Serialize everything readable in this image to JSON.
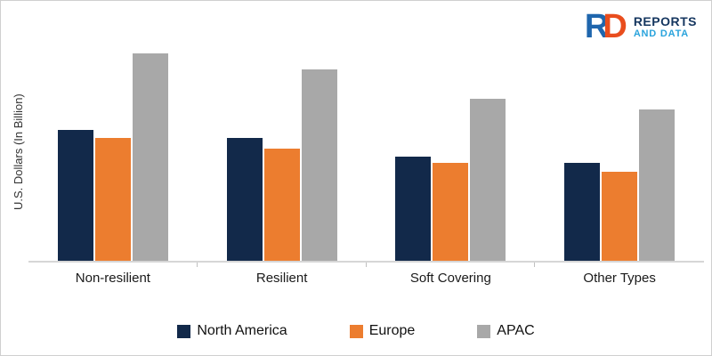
{
  "logo": {
    "letter_r": "R",
    "letter_d": "D",
    "line1": "REPORTS",
    "line2": "AND DATA"
  },
  "chart_data": {
    "type": "bar",
    "title": "",
    "xlabel": "",
    "ylabel": "U.S. Dollars  (In Billion)",
    "categories": [
      "Non-resilient",
      "Resilient",
      "Soft Covering",
      "Other Types"
    ],
    "series": [
      {
        "name": "North America",
        "color": "#12294a",
        "values": [
          6.3,
          5.9,
          5.0,
          4.7
        ]
      },
      {
        "name": "Europe",
        "color": "#ec7d2f",
        "values": [
          5.9,
          5.4,
          4.7,
          4.3
        ]
      },
      {
        "name": "APAC",
        "color": "#a8a8a8",
        "values": [
          10.0,
          9.2,
          7.8,
          7.3
        ]
      }
    ],
    "ylim": [
      0,
      10.5
    ],
    "grid": false,
    "y_tick_labels_visible": false,
    "legend_position": "bottom"
  }
}
